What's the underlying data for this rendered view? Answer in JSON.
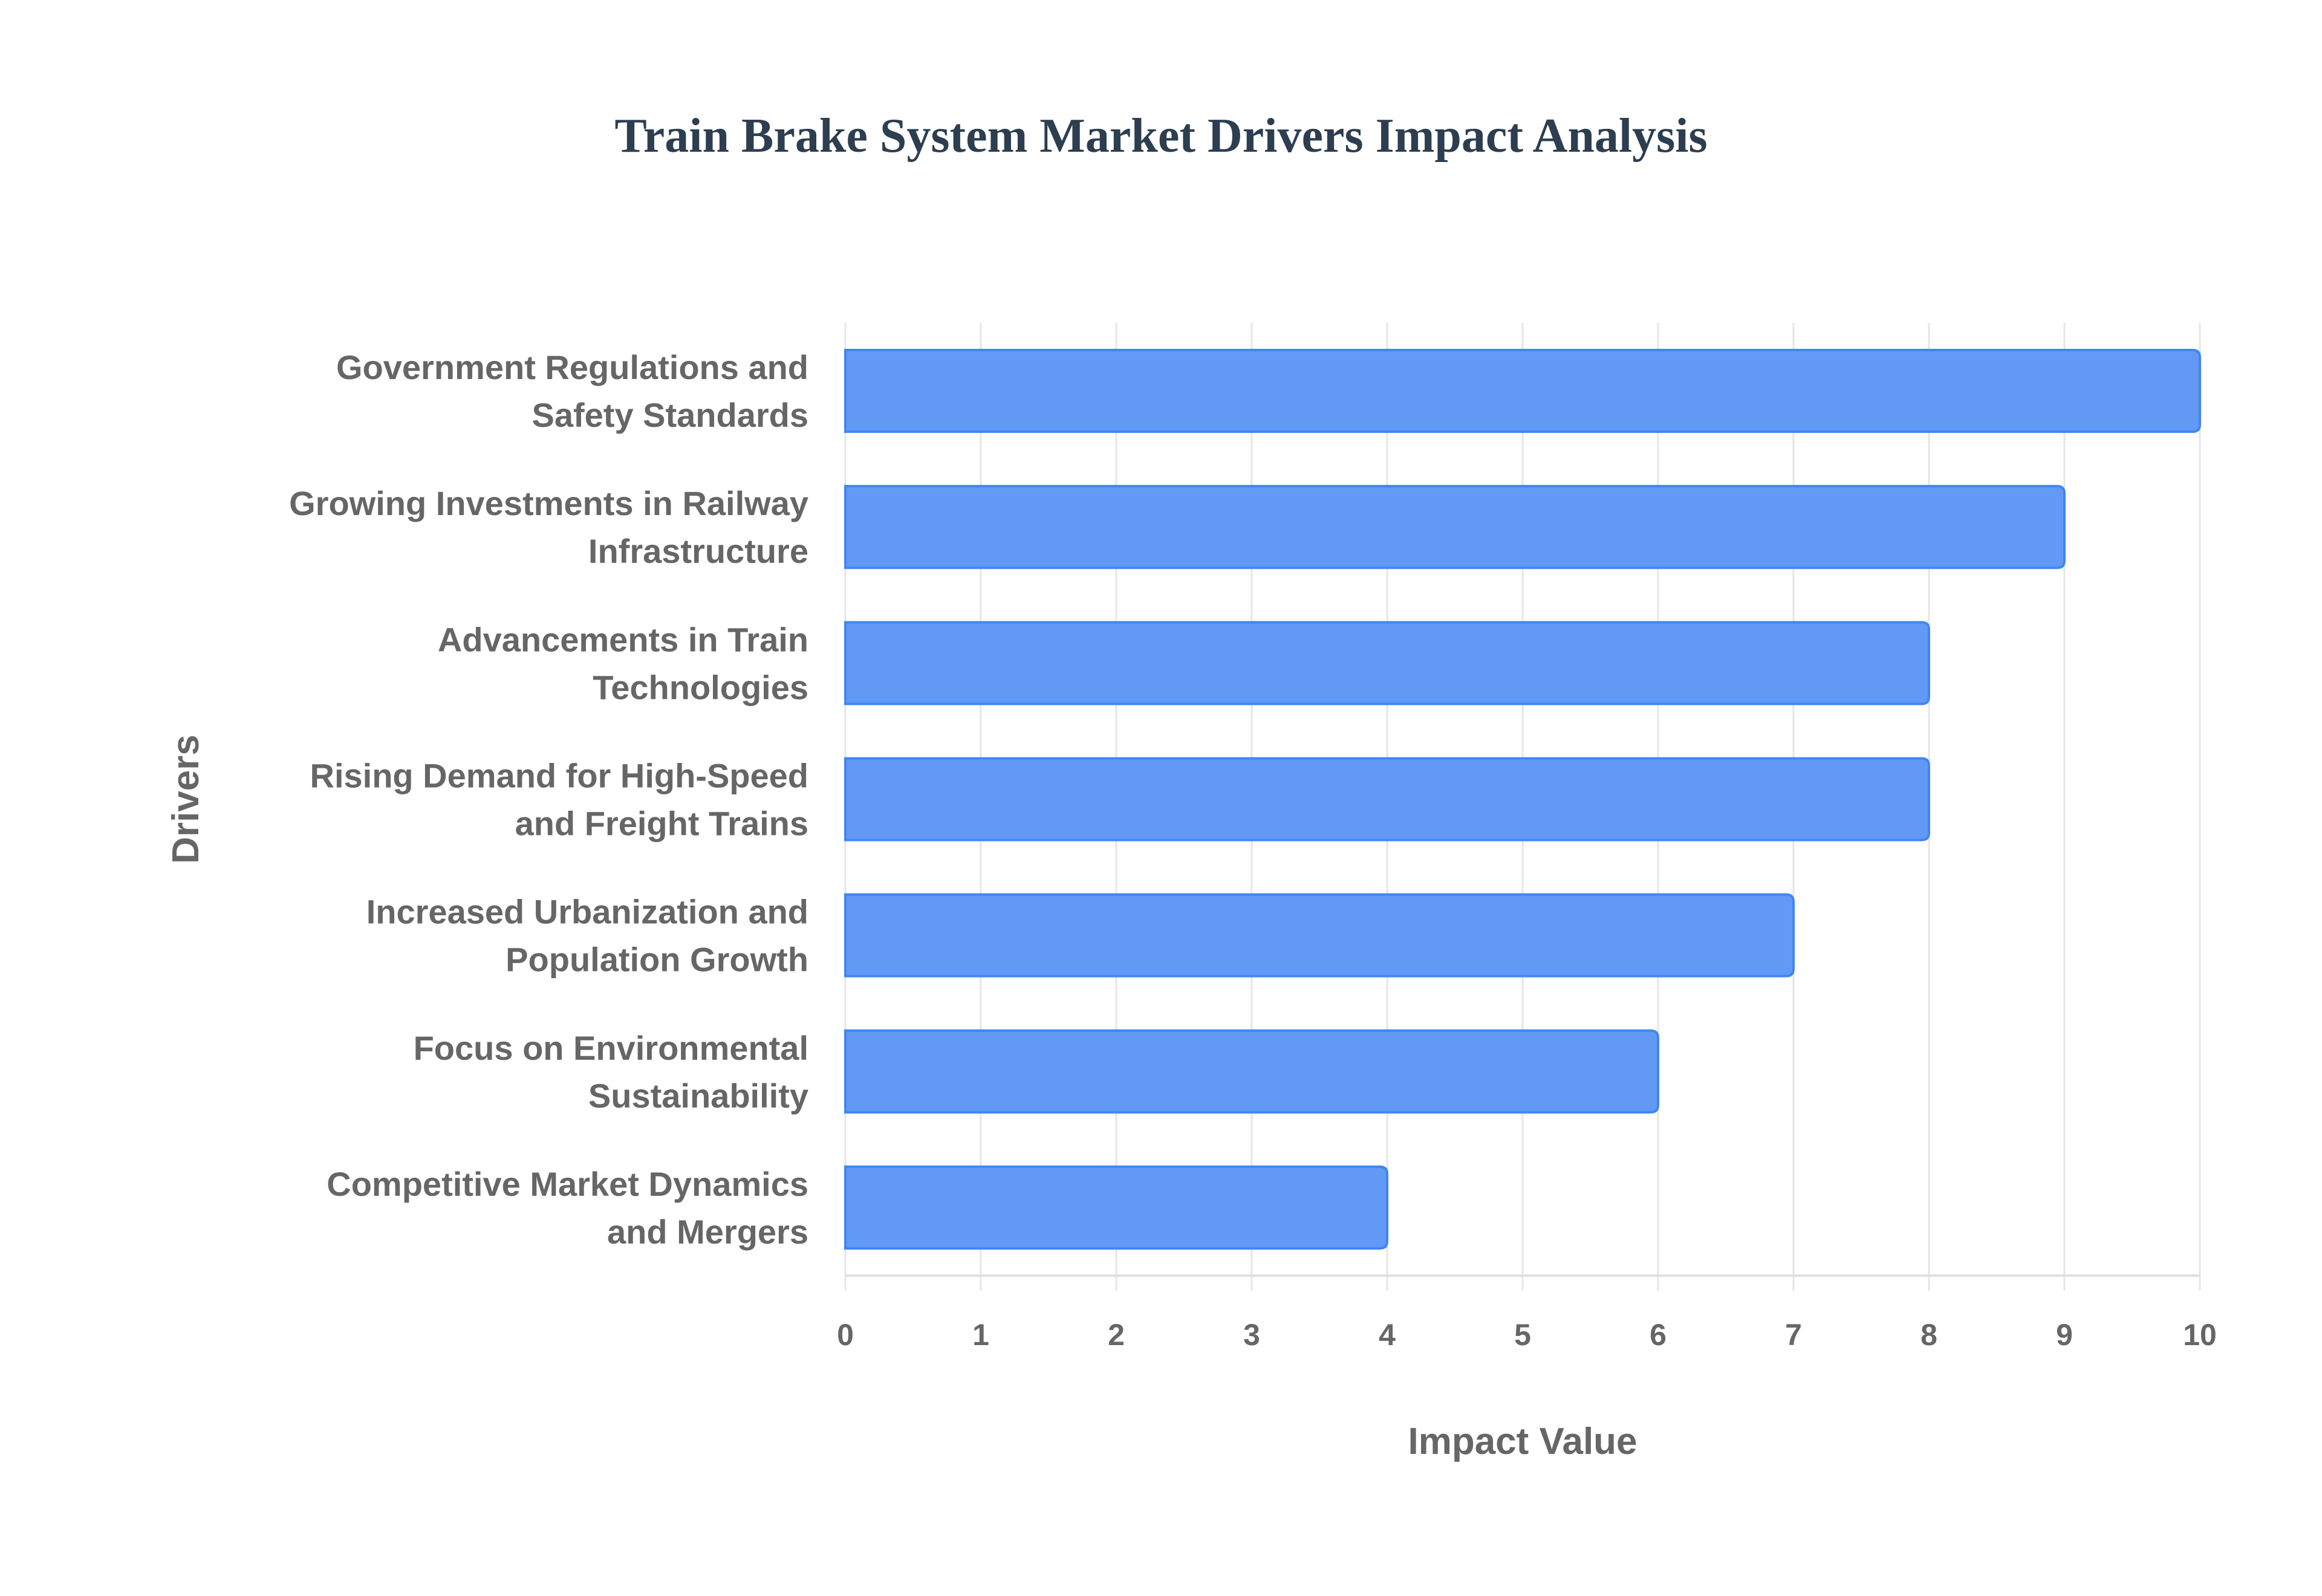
{
  "chart_data": {
    "type": "bar",
    "orientation": "horizontal",
    "title": "Train Brake System Market Drivers Impact Analysis",
    "xlabel": "Impact Value",
    "ylabel": "Drivers",
    "xlim": [
      0,
      10
    ],
    "xticks": [
      "0",
      "1",
      "2",
      "3",
      "4",
      "5",
      "6",
      "7",
      "8",
      "9",
      "10"
    ],
    "grid": true,
    "categories": [
      [
        "Government Regulations and",
        "Safety Standards"
      ],
      [
        "Growing Investments in Railway",
        "Infrastructure"
      ],
      [
        "Advancements in Train",
        "Technologies"
      ],
      [
        "Rising Demand for High-Speed",
        "and Freight Trains"
      ],
      [
        "Increased Urbanization and",
        "Population Growth"
      ],
      [
        "Focus on Environmental",
        "Sustainability"
      ],
      [
        "Competitive Market Dynamics",
        "and Mergers"
      ]
    ],
    "values": [
      10,
      9,
      8,
      8,
      7,
      6,
      4
    ],
    "colors": {
      "bar_fill": "#6199f5",
      "bar_border": "#4285f4",
      "grid": "#e6e6e6",
      "text": "#666666",
      "title": "#2c3e50"
    }
  }
}
